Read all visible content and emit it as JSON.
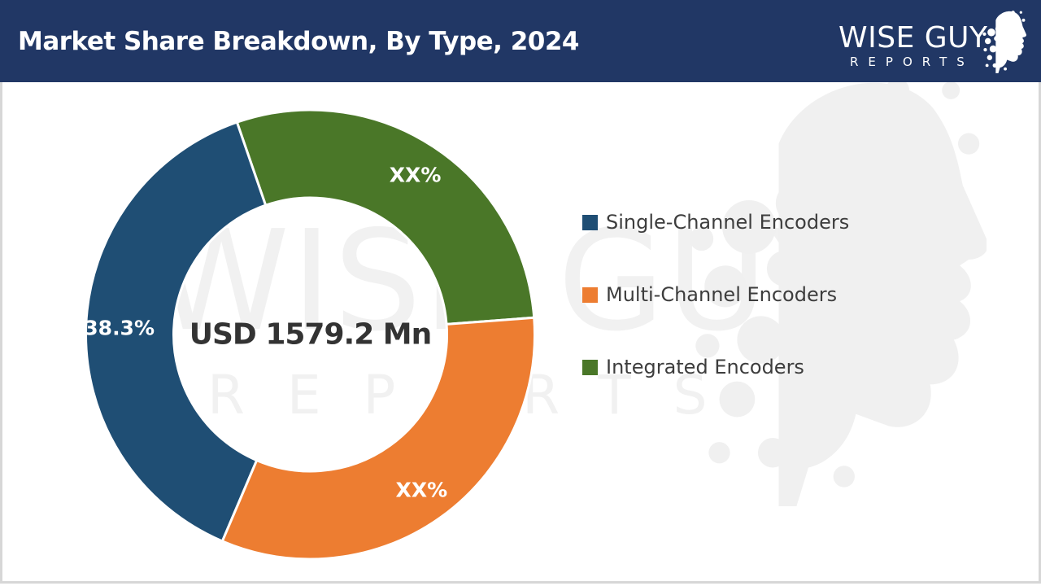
{
  "header": {
    "title": "Market Share Breakdown, By Type, 2024",
    "bg_color": "#213765",
    "logo": {
      "line1": "WISE GUY",
      "line2": "REPORTS"
    }
  },
  "chart_data": {
    "type": "donut",
    "title": "Market Share Breakdown, By Type, 2024",
    "center_label": "USD 1579.2 Mn",
    "start_angle_deg": 4.3,
    "direction": "ccw",
    "outer_radius_px": 276,
    "inner_radius_px": 168,
    "label_radius_px": 235,
    "segments": [
      {
        "name": "Integrated Encoders",
        "label": "XX%",
        "estimated_pct": 29.1,
        "color": "#4A7728"
      },
      {
        "name": "Single-Channel Encoders",
        "label": "38.3%",
        "estimated_pct": 38.3,
        "color": "#1F4E74"
      },
      {
        "name": "Multi-Channel Encoders",
        "label": "XX%",
        "estimated_pct": 32.6,
        "color": "#ED7D31"
      }
    ],
    "legend": [
      {
        "label": "Single-Channel Encoders",
        "color": "#1F4E74"
      },
      {
        "label": "Multi-Channel Encoders",
        "color": "#ED7D31"
      },
      {
        "label": "Integrated Encoders",
        "color": "#4A7728"
      }
    ],
    "legend_position": "right"
  },
  "watermark": {
    "line1": "WISE GUY",
    "line2": "REPORTS"
  },
  "colors": {
    "header_bg": "#213765",
    "blue": "#1F4E74",
    "orange": "#ED7D31",
    "green": "#4A7728",
    "border": "#d7d7d7",
    "watermark": "#f1f1f1"
  }
}
